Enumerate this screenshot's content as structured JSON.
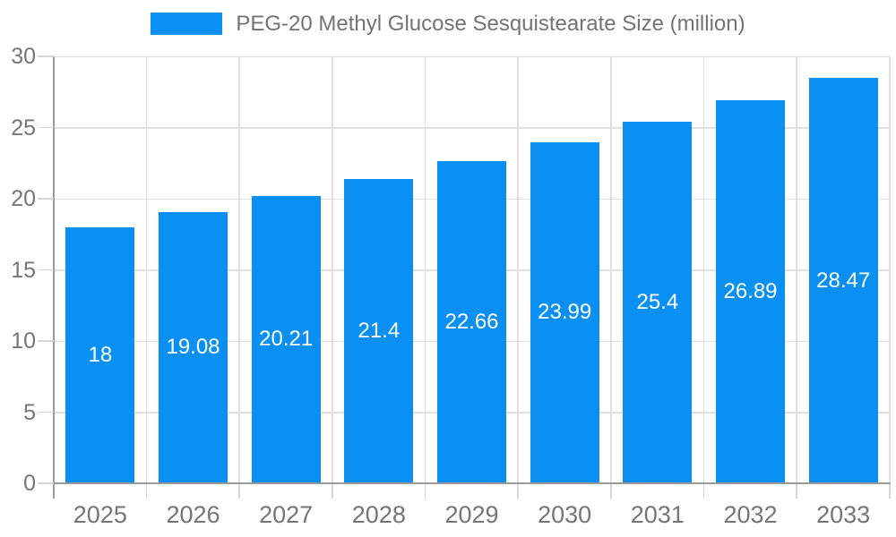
{
  "chart_data": {
    "type": "bar",
    "title": "PEG-20 Methyl Glucose Sesquistearate Size (million)",
    "categories": [
      "2025",
      "2026",
      "2027",
      "2028",
      "2029",
      "2030",
      "2031",
      "2032",
      "2033"
    ],
    "values": [
      18,
      19.08,
      20.21,
      21.4,
      22.66,
      23.99,
      25.4,
      26.89,
      28.47
    ],
    "value_labels": [
      "18",
      "19.08",
      "20.21",
      "21.4",
      "22.66",
      "23.99",
      "25.4",
      "26.89",
      "28.47"
    ],
    "xlabel": "",
    "ylabel": "",
    "ylim": [
      0,
      30
    ],
    "yticks": [
      0,
      5,
      10,
      15,
      20,
      25,
      30
    ],
    "grid": true,
    "legend_position": "top-center",
    "colors": {
      "bar": "#0a90f2",
      "axis_line": "#9a9a9a",
      "grid_line": "#e0e0e0",
      "tick_mark": "#d6d6d6",
      "tick_text": "#757575",
      "legend_text": "#737373",
      "bar_label": "#ffffff",
      "background": "#ffffff"
    }
  }
}
